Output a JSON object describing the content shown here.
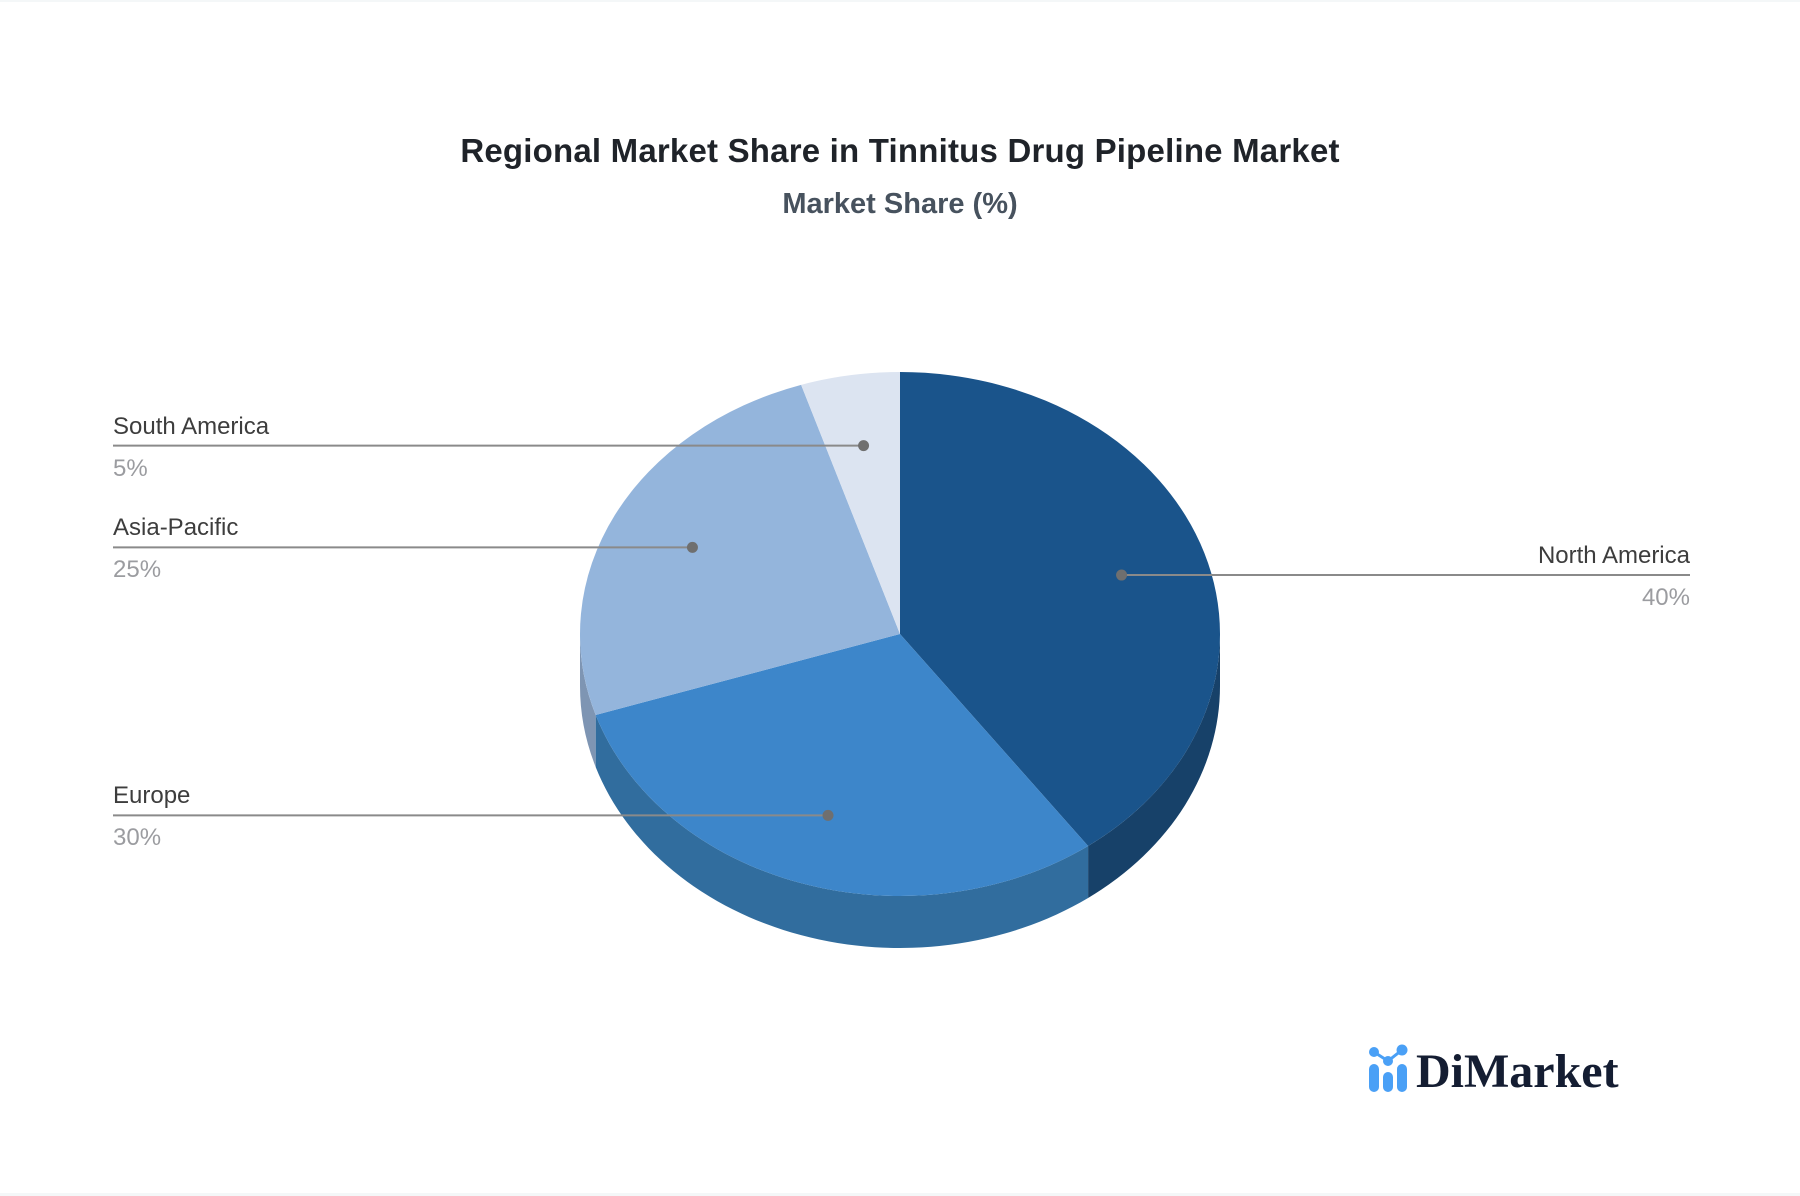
{
  "header": {
    "title": "Regional Market Share in Tinnitus Drug Pipeline Market",
    "subtitle": "Market Share (%)"
  },
  "chart_data": {
    "type": "pie",
    "title": "Regional Market Share in Tinnitus Drug Pipeline Market",
    "subtitle": "Market Share (%)",
    "unit": "%",
    "effect": "3d",
    "start_angle_deg": 0,
    "direction": "clockwise",
    "slices": [
      {
        "name": "North America",
        "value": 40,
        "value_label": "40%",
        "color": "#1a548b",
        "side_color": "#174169",
        "label_side": "right"
      },
      {
        "name": "Europe",
        "value": 30,
        "value_label": "30%",
        "color": "#3d86ca",
        "side_color": "#316d9e",
        "label_side": "left"
      },
      {
        "name": "Asia-Pacific",
        "value": 25,
        "value_label": "25%",
        "color": "#94b5dc",
        "side_color": "#7e95b3",
        "label_side": "left"
      },
      {
        "name": "South America",
        "value": 5,
        "value_label": "5%",
        "color": "#dce4f1",
        "side_color": "#b9c6dd",
        "label_side": "left"
      }
    ],
    "leader_line_color": "#8a8a8a",
    "leader_dot_color": "#6f6f6f",
    "label_name_color": "#3d3d3d",
    "label_value_color": "#9b9ca0"
  },
  "brand": {
    "name": "DiMarket",
    "icon": "bar-chart-line-icon",
    "icon_color": "#4aa0f6",
    "text_color": "#141d32"
  }
}
